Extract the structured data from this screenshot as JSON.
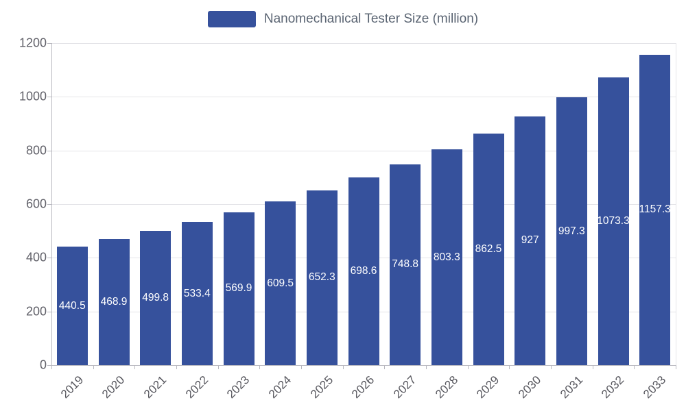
{
  "chart_data": {
    "type": "bar",
    "title": "Nanomechanical Tester Size (million)",
    "categories": [
      "2019",
      "2020",
      "2021",
      "2022",
      "2023",
      "2024",
      "2025",
      "2026",
      "2027",
      "2028",
      "2029",
      "2030",
      "2031",
      "2032",
      "2033"
    ],
    "values": [
      440.5,
      468.9,
      499.8,
      533.4,
      569.9,
      609.5,
      652.3,
      698.6,
      748.8,
      803.3,
      862.5,
      927.0,
      997.3,
      1073.3,
      1157.3
    ],
    "value_labels": [
      "440.5",
      "468.9",
      "499.8",
      "533.4",
      "569.9",
      "609.5",
      "652.3",
      "698.6",
      "748.8",
      "803.3",
      "862.5",
      "927",
      "997.3",
      "1073.3",
      "1157.3"
    ],
    "xlabel": "",
    "ylabel": "",
    "ylim": [
      0,
      1200
    ],
    "yticks": [
      0,
      200,
      400,
      600,
      800,
      1000,
      1200
    ],
    "grid": true,
    "legend_position": "top-center",
    "bar_color": "#36519c",
    "label_color": "#ffffff"
  }
}
